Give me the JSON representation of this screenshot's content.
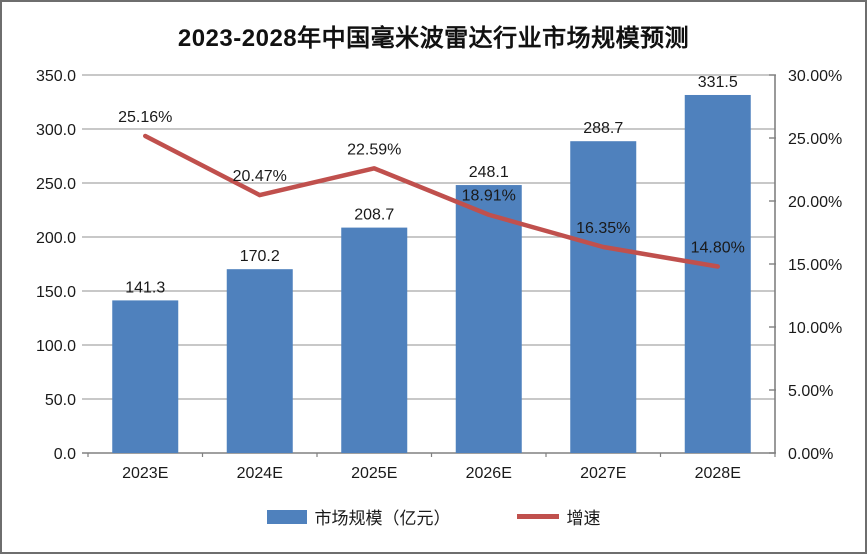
{
  "chart_data": {
    "type": "bar",
    "subtype": "bar-line-combo",
    "title": "2023-2028年中国毫米波雷达行业市场规模预测",
    "xlabel": "",
    "ylabel": "",
    "categories": [
      "2023E",
      "2024E",
      "2025E",
      "2026E",
      "2027E",
      "2028E"
    ],
    "series": [
      {
        "name": "市场规模（亿元）",
        "type": "bar",
        "axis": "left",
        "color": "#4f81bd",
        "values": [
          141.3,
          170.2,
          208.7,
          248.1,
          288.7,
          331.5
        ],
        "labels": [
          "141.3",
          "170.2",
          "208.7",
          "248.1",
          "288.7",
          "331.5"
        ]
      },
      {
        "name": "增速",
        "type": "line",
        "axis": "right",
        "color": "#c0504d",
        "values": [
          25.16,
          20.47,
          22.59,
          18.91,
          16.35,
          14.8
        ],
        "labels": [
          "25.16%",
          "20.47%",
          "22.59%",
          "18.91%",
          "16.35%",
          "14.80%"
        ]
      }
    ],
    "left_axis": {
      "min": 0,
      "max": 350,
      "step": 50,
      "tick_labels": [
        "0.0",
        "50.0",
        "100.0",
        "150.0",
        "200.0",
        "250.0",
        "300.0",
        "350.0"
      ]
    },
    "right_axis": {
      "min": 0,
      "max": 30,
      "step": 5,
      "tick_labels": [
        "0.00%",
        "5.00%",
        "10.00%",
        "15.00%",
        "20.00%",
        "25.00%",
        "30.00%"
      ]
    },
    "grid": true,
    "legend_position": "bottom",
    "colors": {
      "bar": "#4f81bd",
      "line": "#c0504d",
      "gridline": "#a6a6a6",
      "axis": "#808080",
      "text": "#1a1a1a",
      "frame_border": "#6e6e6e",
      "background": "#ffffff"
    }
  }
}
